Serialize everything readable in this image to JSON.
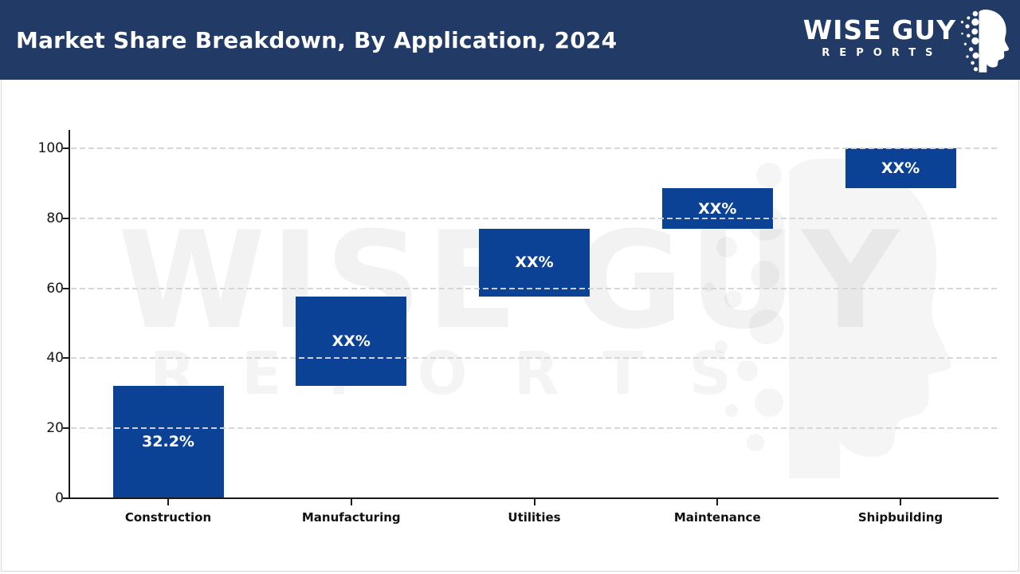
{
  "header": {
    "title": "Market Share Breakdown, By Application, 2024",
    "logo": {
      "line1": "WISE GUY",
      "line2": "REPORTS"
    }
  },
  "watermark": {
    "line1": "WISE GUY",
    "line2": "REPORTS"
  },
  "colors": {
    "header_bg": "#213a66",
    "bar": "#0c4296",
    "gridline": "#d5d5d5",
    "axis": "#1a1a1a",
    "bar_label_text": "#ffffff",
    "frame_border": "#d8d8d8"
  },
  "chart_data": {
    "type": "bar",
    "subtype": "waterfall-floating-bars",
    "title": "Market Share Breakdown, By Application, 2024",
    "categories": [
      "Construction",
      "Manufacturing",
      "Utilities",
      "Maintenance",
      "Shipbuilding"
    ],
    "segments": [
      {
        "category": "Construction",
        "start": 0,
        "end": 32.2,
        "label": "32.2%"
      },
      {
        "category": "Manufacturing",
        "start": 32.2,
        "end": 57.7,
        "label": "XX%"
      },
      {
        "category": "Utilities",
        "start": 57.7,
        "end": 77.0,
        "label": "XX%"
      },
      {
        "category": "Maintenance",
        "start": 77.0,
        "end": 88.6,
        "label": "XX%"
      },
      {
        "category": "Shipbuilding",
        "start": 88.6,
        "end": 100,
        "label": "XX%"
      }
    ],
    "yticks": [
      0,
      20,
      40,
      60,
      80,
      100
    ],
    "ylim": [
      0,
      105
    ],
    "xlabel": "",
    "ylabel": "",
    "grid": "dashed-horizontal-above-bars",
    "legend": "none"
  }
}
